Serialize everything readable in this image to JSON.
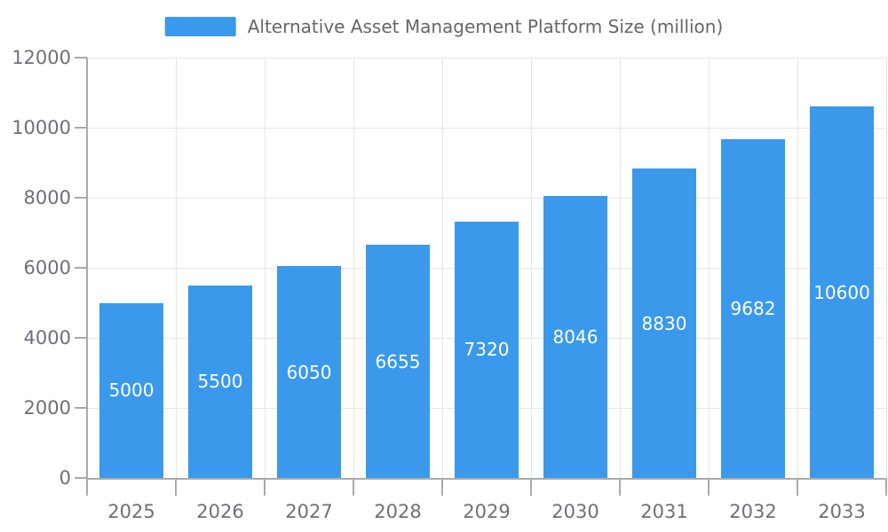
{
  "legend": {
    "label": "Alternative Asset Management Platform Size (million)"
  },
  "chart_data": {
    "type": "bar",
    "title": "Alternative Asset Management Platform Size (million)",
    "xlabel": "",
    "ylabel": "",
    "categories": [
      "2025",
      "2026",
      "2027",
      "2028",
      "2029",
      "2030",
      "2031",
      "2032",
      "2033"
    ],
    "values": [
      5000,
      5500,
      6050,
      6655,
      7320,
      8046,
      8830,
      9682,
      10600
    ],
    "value_labels": [
      "5000",
      "5500",
      "6050",
      "6655",
      "7320",
      "8046",
      "8830",
      "9682",
      "10600"
    ],
    "ylim": [
      0,
      12000
    ],
    "ytick_step": 2000,
    "yticks": [
      0,
      2000,
      4000,
      6000,
      8000,
      10000,
      12000
    ],
    "grid": true,
    "legend_position": "top",
    "colors": {
      "bar": "#3b99ec",
      "grid": "#e6e6e6",
      "axis": "#aaaaaa",
      "tick_label": "#6e7079",
      "legend_text": "#666666",
      "value_label": "#ffffff",
      "background": "#ffffff"
    }
  }
}
